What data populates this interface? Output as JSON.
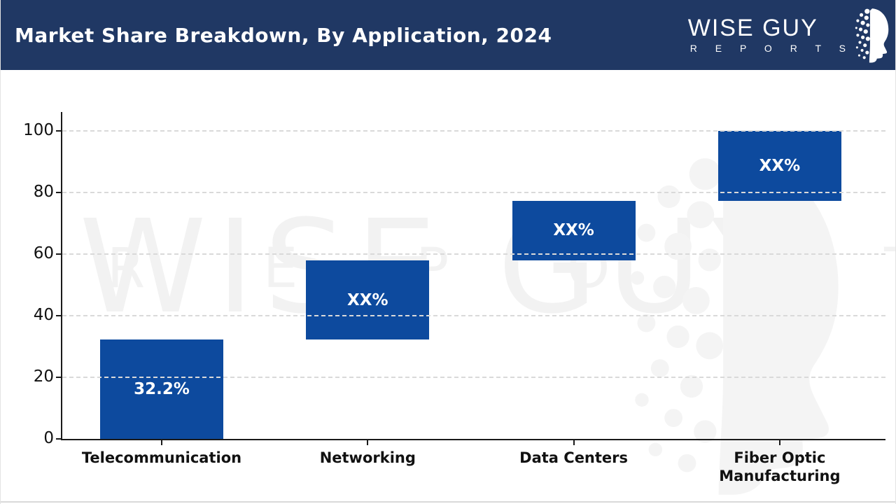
{
  "header": {
    "title": "Market Share Breakdown, By Application, 2024",
    "logo": {
      "line1": "WISE GUY",
      "line2": "R E P O R T S"
    }
  },
  "watermark": {
    "line1": "WISE GUY",
    "line2": "R E P O R T S"
  },
  "chart_data": {
    "type": "bar",
    "subtype": "waterfall",
    "title": "Market Share Breakdown, By Application, 2024",
    "categories": [
      "Telecommunication",
      "Networking",
      "Data Centers",
      "Fiber Optic Manufacturing"
    ],
    "segments": [
      {
        "category": "Telecommunication",
        "start": 0,
        "end": 32.2,
        "label": "32.2%"
      },
      {
        "category": "Networking",
        "start": 32.2,
        "end": 58.0,
        "label": "XX%"
      },
      {
        "category": "Data Centers",
        "start": 58.0,
        "end": 77.3,
        "label": "XX%"
      },
      {
        "category": "Fiber Optic Manufacturing",
        "start": 77.3,
        "end": 100,
        "label": "XX%"
      }
    ],
    "xlabel": "",
    "ylabel": "",
    "ylim": [
      0,
      100
    ],
    "yticks": [
      0,
      20,
      40,
      60,
      80,
      100
    ],
    "grid": "horizontal-dashed",
    "legend": "none",
    "colors": {
      "bar": "#0d4a9e",
      "bar_label": "#ffffff",
      "header_bg": "#203864",
      "grid": "#d9d9d9",
      "axis": "#1a1a1a",
      "watermark": "#f2f2f2"
    }
  }
}
